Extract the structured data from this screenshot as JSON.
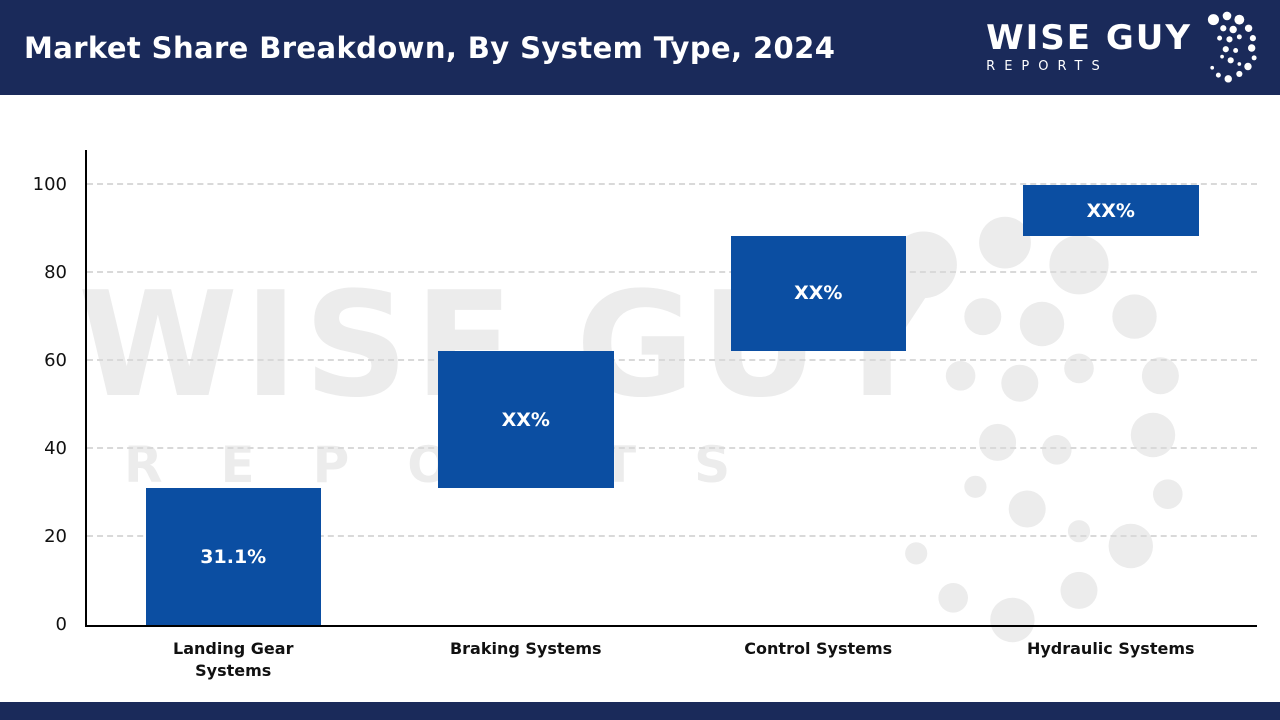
{
  "header": {
    "title": "Market Share Breakdown, By System Type, 2024",
    "logo": {
      "line1": "WISE GUY",
      "line2": "REPORTS"
    }
  },
  "watermark": {
    "line1": "WISE GUY",
    "line2": "REPORTS"
  },
  "chart_data": {
    "type": "bar",
    "subtype": "waterfall",
    "title": "Market Share Breakdown, By System Type, 2024",
    "categories": [
      "Landing Gear\nSystems",
      "Braking Systems",
      "Control Systems",
      "Hydraulic Systems"
    ],
    "segments": [
      {
        "category": "Landing Gear Systems",
        "start": 0,
        "end": 31.1,
        "label": "31.1%"
      },
      {
        "category": "Braking Systems",
        "start": 31.1,
        "end": 62.3,
        "label": "XX%"
      },
      {
        "category": "Control Systems",
        "start": 62.3,
        "end": 88.4,
        "label": "XX%"
      },
      {
        "category": "Hydraulic Systems",
        "start": 88.4,
        "end": 100,
        "label": "XX%"
      }
    ],
    "ylim": [
      0,
      100
    ],
    "yticks": [
      0,
      20,
      40,
      60,
      80,
      100
    ],
    "grid": true,
    "legend": false,
    "bar_color": "#0b4ea2",
    "bar_label_color": "#ffffff",
    "axis_color": "#000000",
    "gridline_color": "#d9d9d9"
  },
  "colors": {
    "header_bg": "#1a2a5a",
    "footer_bg": "#1a2a5a",
    "watermark": "#ececec",
    "background": "#ffffff"
  }
}
